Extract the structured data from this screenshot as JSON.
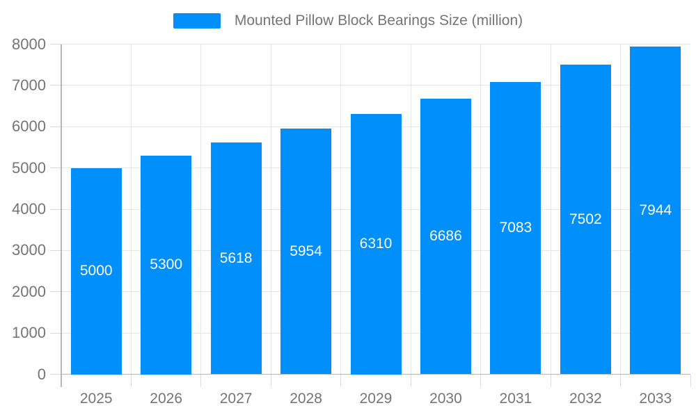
{
  "legend": {
    "label": "Mounted Pillow Block Bearings Size (million)",
    "swatch_color": "#008FFB"
  },
  "chart_data": {
    "type": "bar",
    "title": "Mounted Pillow Block Bearings Size (million)",
    "categories": [
      "2025",
      "2026",
      "2027",
      "2028",
      "2029",
      "2030",
      "2031",
      "2032",
      "2033"
    ],
    "series": [
      {
        "name": "Mounted Pillow Block Bearings Size (million)",
        "values": [
          5000,
          5300,
          5618,
          5954,
          6310,
          6686,
          7083,
          7502,
          7944
        ]
      }
    ],
    "xlabel": "",
    "ylabel": "",
    "ylim": [
      0,
      8000
    ],
    "yticks": [
      0,
      1000,
      2000,
      3000,
      4000,
      5000,
      6000,
      7000,
      8000
    ],
    "grid": true,
    "legend_position": "top",
    "data_labels": "inside-center"
  },
  "colors": {
    "bar": "#008FFB",
    "grid": "#e7e7e7",
    "axis_line": "#b6b6b6",
    "axis_label": "#757575",
    "data_label": "#ffffff",
    "background": "#ffffff"
  }
}
